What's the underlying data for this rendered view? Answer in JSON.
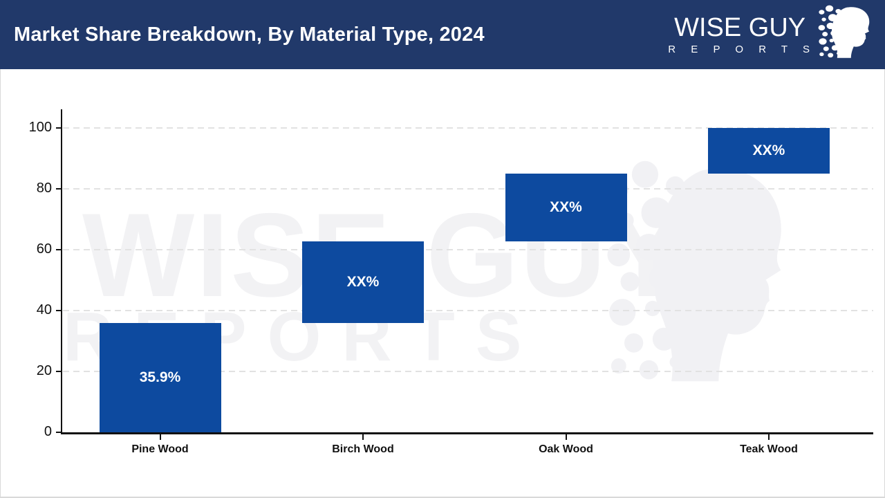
{
  "header": {
    "title": "Market Share Breakdown, By Material Type, 2024",
    "background_color": "#21396a",
    "logo": {
      "line1": "WISE GUY",
      "line2": "R E P O R T S",
      "icon": "dotted-face-profile-icon"
    }
  },
  "watermark": {
    "line1": "WISE GUY",
    "line2": "REPORTS"
  },
  "chart_data": {
    "type": "bar",
    "subtype": "waterfall",
    "title": "Market Share Breakdown, By Material Type, 2024",
    "categories": [
      "Pine Wood",
      "Birch Wood",
      "Oak Wood",
      "Teak Wood"
    ],
    "segments": [
      {
        "category": "Pine Wood",
        "start": 0,
        "end": 35.9,
        "label": "35.9%"
      },
      {
        "category": "Birch Wood",
        "start": 35.9,
        "end": 62.7,
        "label": "XX%"
      },
      {
        "category": "Oak Wood",
        "start": 62.7,
        "end": 85.0,
        "label": "XX%"
      },
      {
        "category": "Teak Wood",
        "start": 85.0,
        "end": 100.0,
        "label": "XX%"
      }
    ],
    "xlabel": "",
    "ylabel": "",
    "ylim": [
      0,
      100
    ],
    "yticks": [
      0,
      20,
      40,
      60,
      80,
      100
    ],
    "grid": "horizontal-dashed",
    "legend": null,
    "bar_color": "#0d4a9f",
    "bar_label_color": "#ffffff",
    "axis_color": "#111111",
    "gridline_color": "#e2e2e2"
  }
}
